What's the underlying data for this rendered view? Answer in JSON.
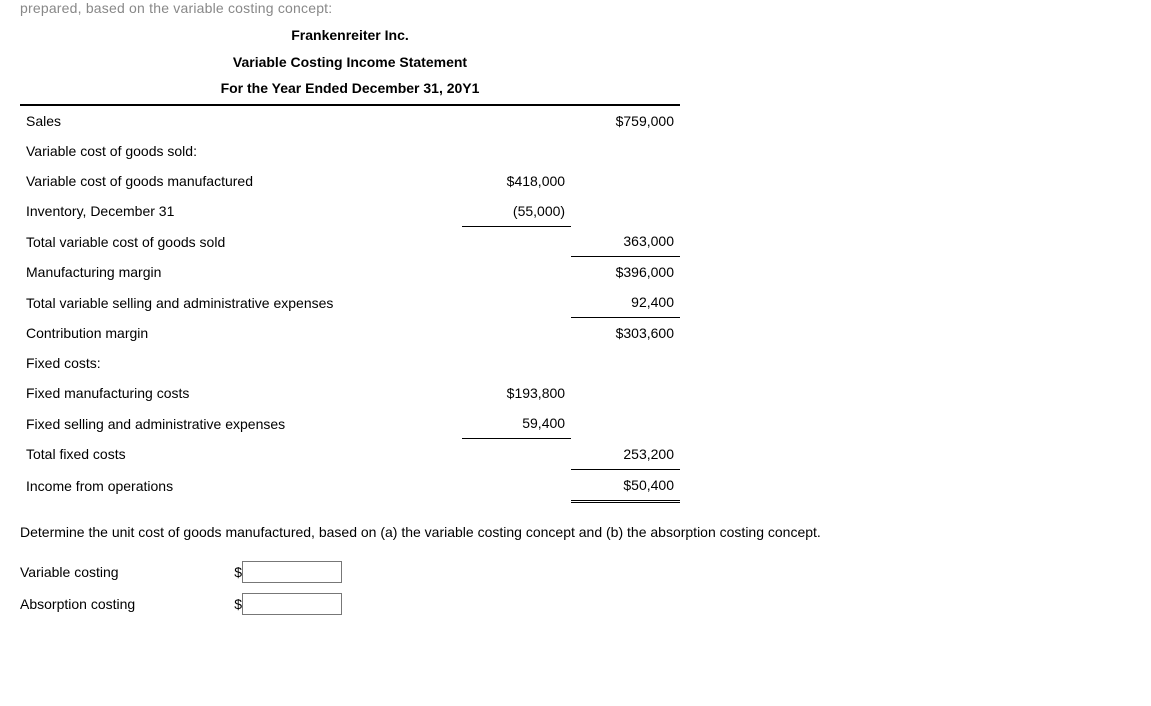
{
  "top_cropped_text": "prepared, based on the variable costing concept:",
  "heading": {
    "company": "Frankenreiter Inc.",
    "title": "Variable Costing Income Statement",
    "period": "For the Year Ended December 31, 20Y1"
  },
  "rows": {
    "sales": {
      "label": "Sales",
      "col2": "$759,000"
    },
    "vcogs_header": {
      "label": "Variable cost of goods sold:"
    },
    "vcogm": {
      "label": "Variable cost of goods manufactured",
      "col1": "$418,000"
    },
    "inv_dec31": {
      "label": "Inventory, December 31",
      "col1": "(55,000)"
    },
    "total_vcogs": {
      "label": "Total variable cost of goods sold",
      "col2": "363,000"
    },
    "mfg_margin": {
      "label": "Manufacturing margin",
      "col2": "$396,000"
    },
    "var_sell_admin": {
      "label": "Total variable selling and administrative expenses",
      "col2": "92,400"
    },
    "contrib_margin": {
      "label": "Contribution margin",
      "col2": "$303,600"
    },
    "fixed_header": {
      "label": "Fixed costs:"
    },
    "fixed_mfg": {
      "label": "Fixed manufacturing costs",
      "col1": "$193,800"
    },
    "fixed_sell_admin": {
      "label": "Fixed selling and administrative expenses",
      "col1": "59,400"
    },
    "total_fixed": {
      "label": "Total fixed costs",
      "col2": "253,200"
    },
    "income_ops": {
      "label": "Income from operations",
      "col2": "$50,400"
    }
  },
  "question": "Determine the unit cost of goods manufactured, based on (a) the variable costing concept and (b) the absorption costing concept.",
  "answers": {
    "variable_costing": {
      "label": "Variable costing",
      "currency": "$",
      "value": ""
    },
    "absorption_costing": {
      "label": "Absorption costing",
      "currency": "$",
      "value": ""
    }
  }
}
